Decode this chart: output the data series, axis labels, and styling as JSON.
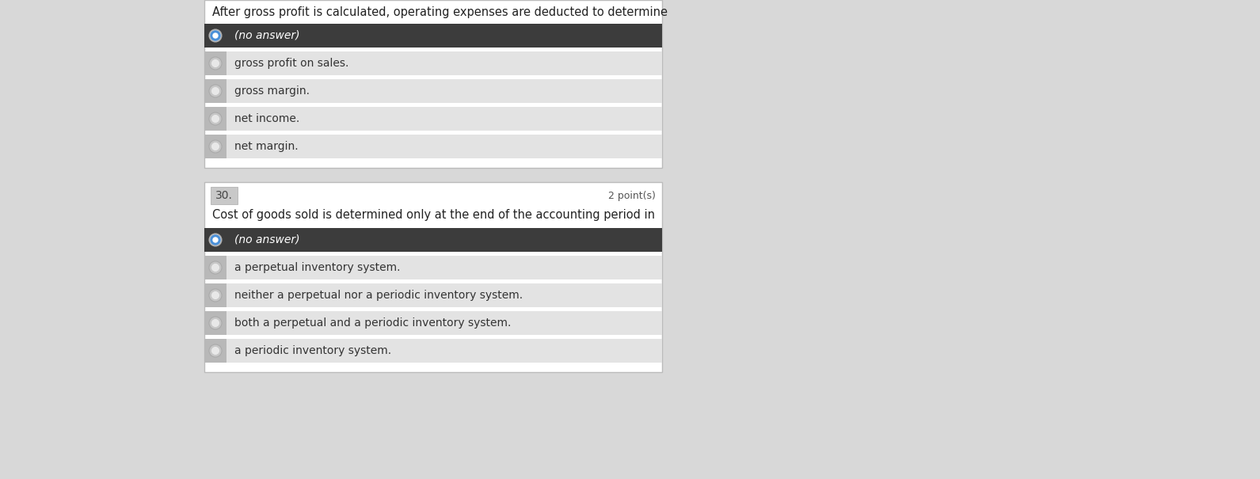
{
  "bg_color": "#d8d8d8",
  "outer_box_bg": "#ffffff",
  "outer_box_border": "#bbbbbb",
  "selected_bg": "#3c3c3c",
  "selected_text": "#ffffff",
  "unselected_bg": "#e3e3e3",
  "unselected_text": "#333333",
  "radio_left_bg": "#b8b8b8",
  "radio_selected_color": "#4a90d9",
  "number_box_bg": "#c8c8c8",
  "number_box_text": "#444444",
  "points_text_color": "#555555",
  "question_text_color": "#222222",
  "question1": {
    "text": "After gross profit is calculated, operating expenses are deducted to determine",
    "options": [
      {
        "label": "(no answer)",
        "selected": true
      },
      {
        "label": "gross profit on sales.",
        "selected": false
      },
      {
        "label": "gross margin.",
        "selected": false
      },
      {
        "label": "net income.",
        "selected": false
      },
      {
        "label": "net margin.",
        "selected": false
      }
    ]
  },
  "question2": {
    "number": "30.",
    "points": "2 point(s)",
    "text": "Cost of goods sold is determined only at the end of the accounting period in",
    "options": [
      {
        "label": "(no answer)",
        "selected": true
      },
      {
        "label": "a perpetual inventory system.",
        "selected": false
      },
      {
        "label": "neither a perpetual nor a periodic inventory system.",
        "selected": false
      },
      {
        "label": "both a perpetual and a periodic inventory system.",
        "selected": false
      },
      {
        "label": "a periodic inventory system.",
        "selected": false
      }
    ]
  }
}
